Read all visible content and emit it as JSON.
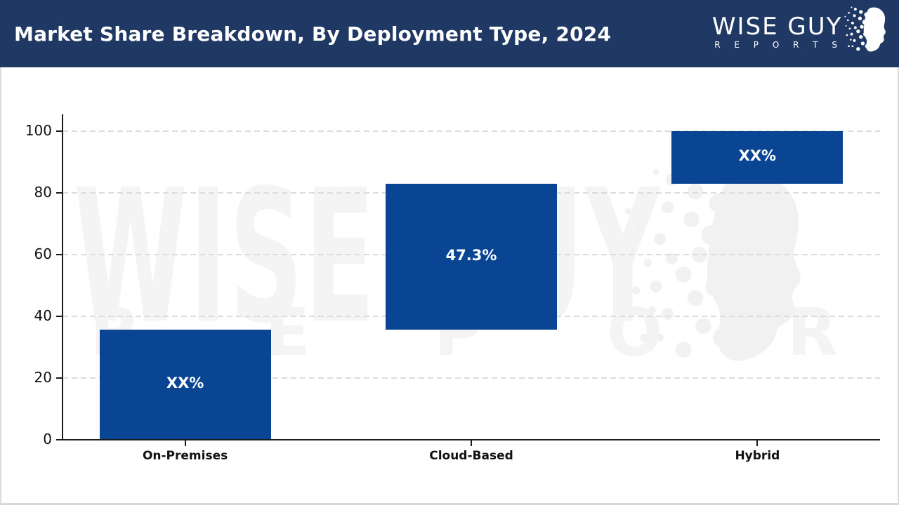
{
  "header": {
    "title": "Market Share Breakdown, By Deployment Type, 2024",
    "background_color": "#1f3864",
    "logo": {
      "name": "WISE GUY",
      "sub": "R E P O R T S"
    }
  },
  "watermark": {
    "text_main": "WISE GUY",
    "text_sub": "R E P O R T S"
  },
  "chart_data": {
    "type": "bar",
    "variant": "waterfall",
    "title": "Market Share Breakdown, By Deployment Type, 2024",
    "categories": [
      "On-Premises",
      "Cloud-Based",
      "Hybrid"
    ],
    "segments": [
      {
        "category": "On-Premises",
        "start": 0,
        "end": 35.7,
        "label": "XX%"
      },
      {
        "category": "Cloud-Based",
        "start": 35.7,
        "end": 83.0,
        "label": "47.3%"
      },
      {
        "category": "Hybrid",
        "start": 83.0,
        "end": 100,
        "label": "XX%"
      }
    ],
    "yticks": [
      0,
      20,
      40,
      60,
      80,
      100
    ],
    "ylim": [
      0,
      105
    ],
    "xlabel": "",
    "ylabel": "",
    "grid": "horizontal-dashed",
    "legend": "none",
    "bar_color": "#0a4594",
    "bar_label_color": "#ffffff",
    "axis_color": "#1a1a1a",
    "grid_color": "#dcdcdc"
  }
}
